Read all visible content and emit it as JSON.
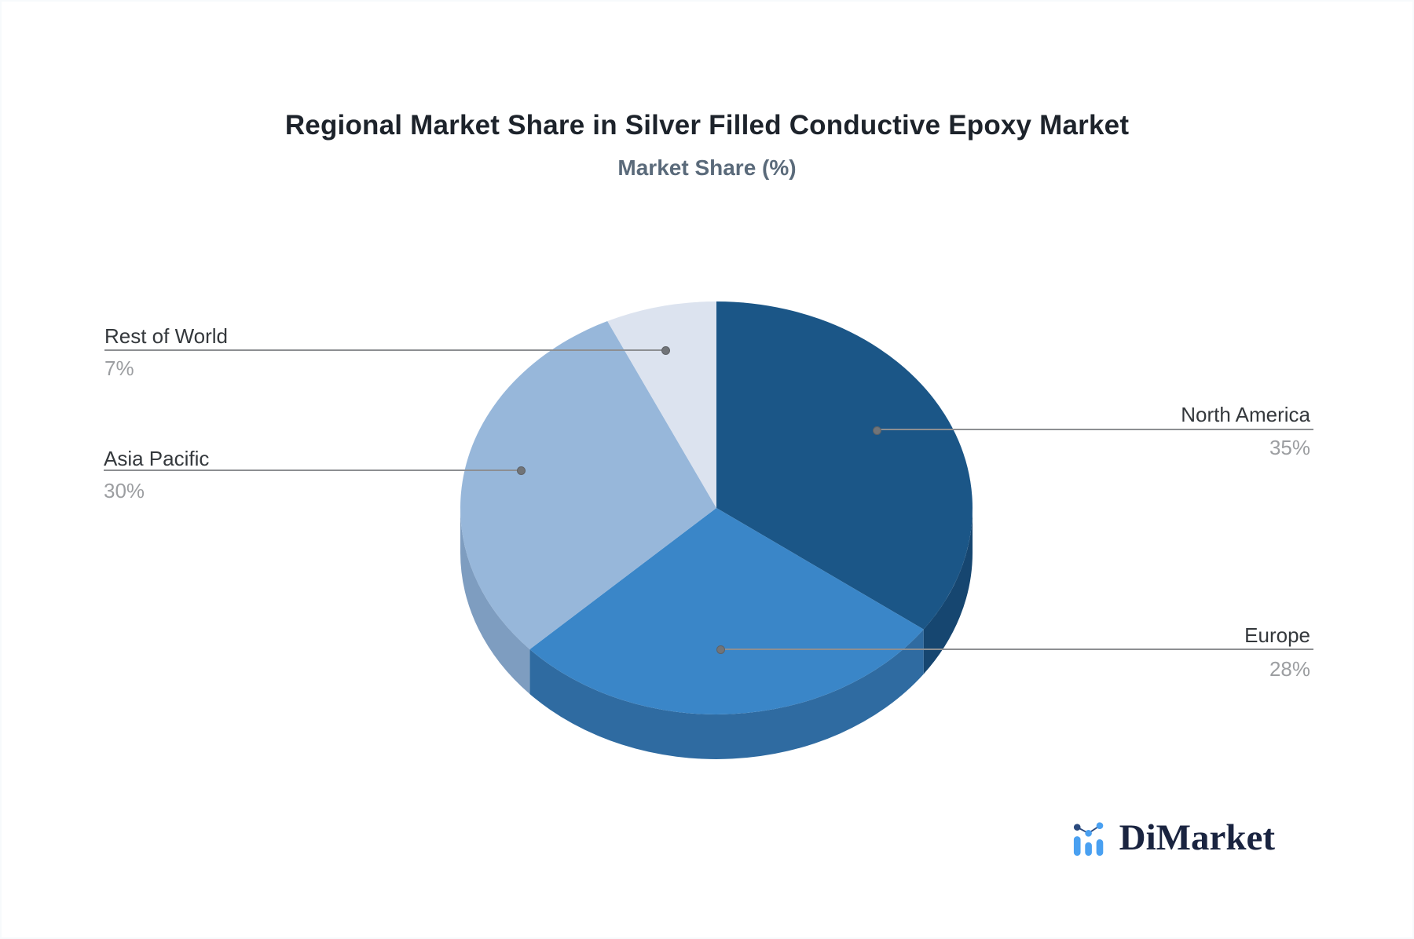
{
  "title": "Regional Market Share in Silver Filled Conductive Epoxy Market",
  "subtitle": "Market Share (%)",
  "chart_data": {
    "type": "pie",
    "style": "3d",
    "title": "Regional Market Share in Silver Filled Conductive Epoxy Market",
    "subtitle": "Market Share (%)",
    "unit": "%",
    "start_angle": "12 o'clock",
    "direction": "clockwise",
    "legend_position": "callout labels left and right of pie",
    "series": [
      {
        "name": "North America",
        "value": 35,
        "display": "35%",
        "color": "#1b5687",
        "side_color": "#164670"
      },
      {
        "name": "Europe",
        "value": 28,
        "display": "28%",
        "color": "#3a86c8",
        "side_color": "#2f6ba1"
      },
      {
        "name": "Asia Pacific",
        "value": 30,
        "display": "30%",
        "color": "#97b7da",
        "side_color": "#7e9dc0"
      },
      {
        "name": "Rest of World",
        "value": 7,
        "display": "7%",
        "color": "#dce3ef",
        "side_color": "#b9c4d6"
      }
    ],
    "colors": {
      "title_text": "#1d232b",
      "subtitle_text": "#5a6a7a",
      "label_text": "#34383c",
      "percent_text": "#9c9ea1",
      "leader_line": "#8d8f92"
    }
  },
  "logo": {
    "text": "DiMarket",
    "text_color": "#1a2440",
    "icon": "bar-chart-trend-icon",
    "icon_bar_color": "#49a0f1",
    "icon_line_color": "#2b4a7e"
  }
}
